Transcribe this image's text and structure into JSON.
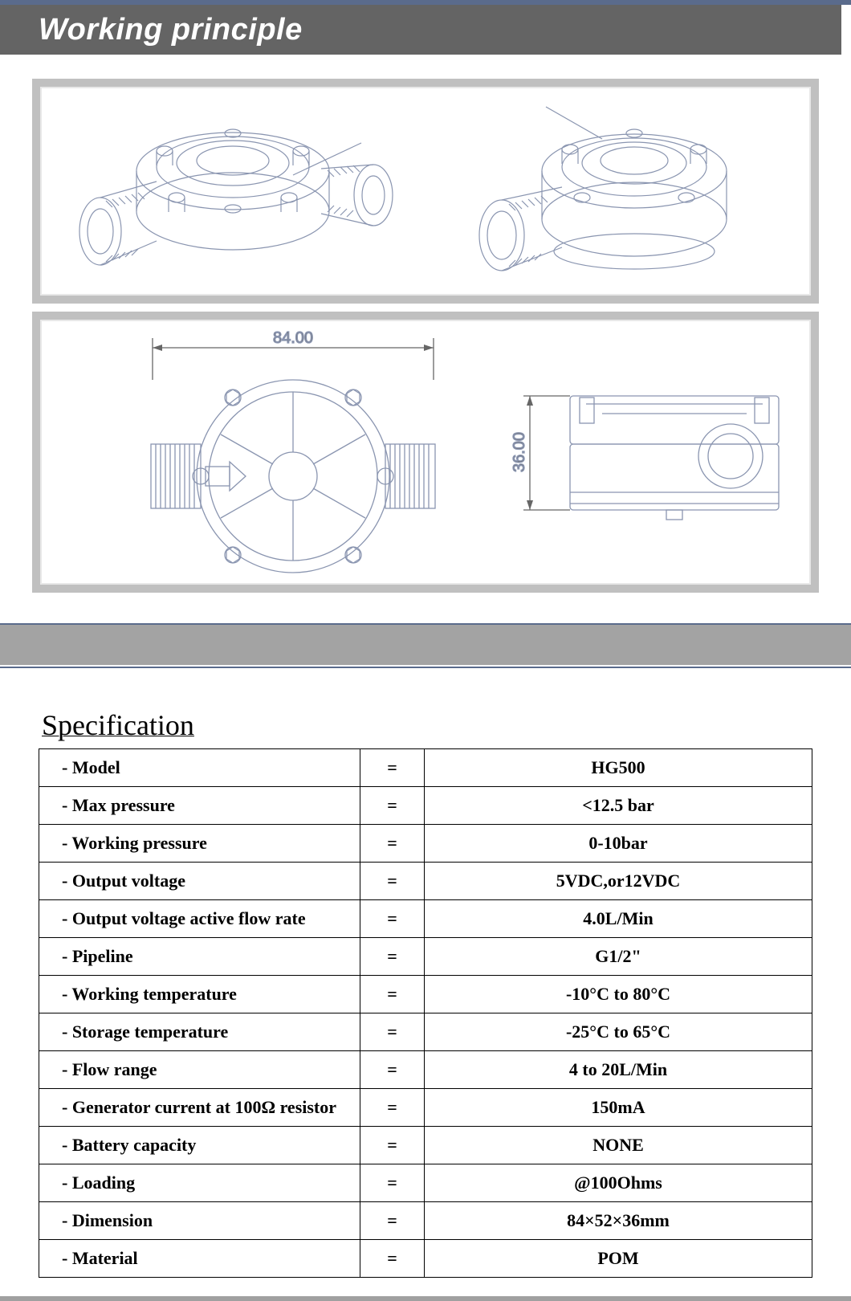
{
  "header": {
    "title": "Working principle",
    "bar_color": "#646464",
    "title_color": "#ffffff",
    "accent_line_color": "#5a6b8c"
  },
  "diagrams": {
    "frame_border_color": "#c0c0c0",
    "line_color": "#8a95b0",
    "dim_width_label": "84.00",
    "dim_height_label": "36.00"
  },
  "spec": {
    "title": "Specification",
    "equals": "=",
    "rows": [
      {
        "label": "- Model",
        "value": "HG500"
      },
      {
        "label": "- Max pressure",
        "value": "<12.5 bar"
      },
      {
        "label": "- Working pressure",
        "value": "0-10bar"
      },
      {
        "label": "- Output voltage",
        "value": "5VDC,or12VDC"
      },
      {
        "label": "- Output voltage active flow rate",
        "value": "4.0L/Min"
      },
      {
        "label": "- Pipeline",
        "value": "G1/2\""
      },
      {
        "label": "- Working temperature",
        "value": "-10°C to 80°C"
      },
      {
        "label": "- Storage temperature",
        "value": "-25°C to 65°C"
      },
      {
        "label": "- Flow range",
        "value": "4 to 20L/Min"
      },
      {
        "label": "- Generator current at 100Ω resistor",
        "value": "150mA"
      },
      {
        "label": "- Battery capacity",
        "value": "NONE"
      },
      {
        "label": "- Loading",
        "value": "@100Ohms"
      },
      {
        "label": "- Dimension",
        "value": "84×52×36mm"
      },
      {
        "label": "- Material",
        "value": "POM"
      }
    ]
  },
  "colors": {
    "mid_bar": "#a3a3a3",
    "table_border": "#000000",
    "text": "#000000"
  }
}
